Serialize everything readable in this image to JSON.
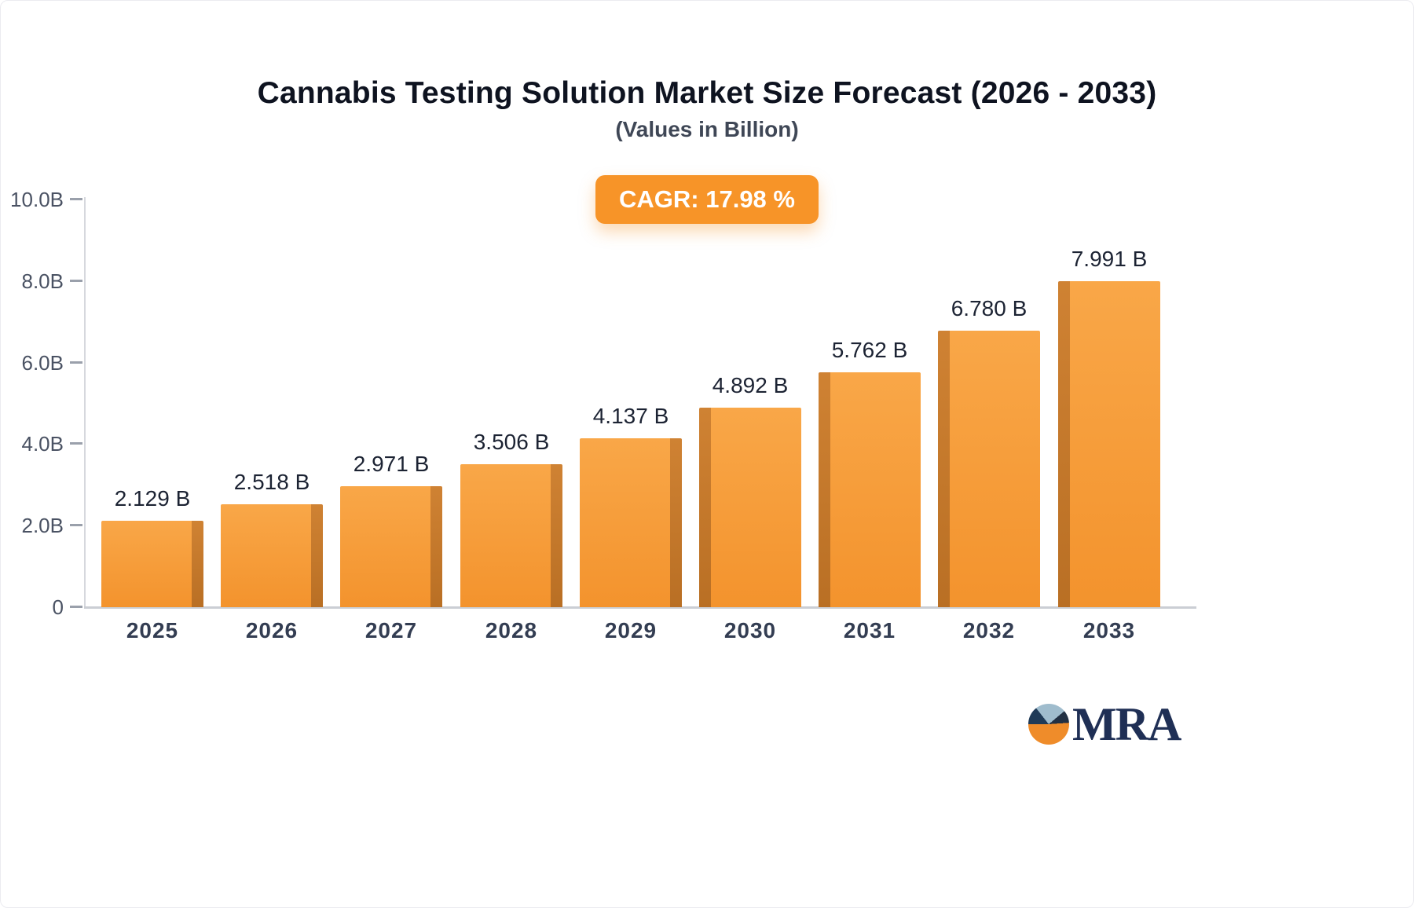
{
  "chart_data": {
    "type": "bar",
    "title": "Cannabis Testing Solution Market Size Forecast (2026 - 2033)",
    "subtitle": "(Values in Billion)",
    "cagr_badge": "CAGR: 17.98 %",
    "categories": [
      "2025",
      "2026",
      "2027",
      "2028",
      "2029",
      "2030",
      "2031",
      "2032",
      "2033"
    ],
    "values": [
      2.129,
      2.518,
      2.971,
      3.506,
      4.137,
      4.892,
      5.762,
      6.78,
      7.991
    ],
    "value_labels": [
      "2.129 B",
      "2.518 B",
      "2.971 B",
      "3.506 B",
      "4.137 B",
      "4.892 B",
      "5.762 B",
      "6.780 B",
      "7.991 B"
    ],
    "xlabel": "",
    "ylabel": "",
    "ylim": [
      0,
      10
    ],
    "y_ticks": [
      "0",
      "2.0B",
      "4.0B",
      "6.0B",
      "8.0B",
      "10.0B"
    ],
    "grid": false,
    "legend": "none",
    "colors": {
      "bar": "#f79b35",
      "bar_side": "#c07a2b",
      "badge": "#f79428",
      "axis": "#cbced4",
      "value_label": "#1c2333"
    }
  },
  "branding": {
    "logo_text": "MRA"
  }
}
